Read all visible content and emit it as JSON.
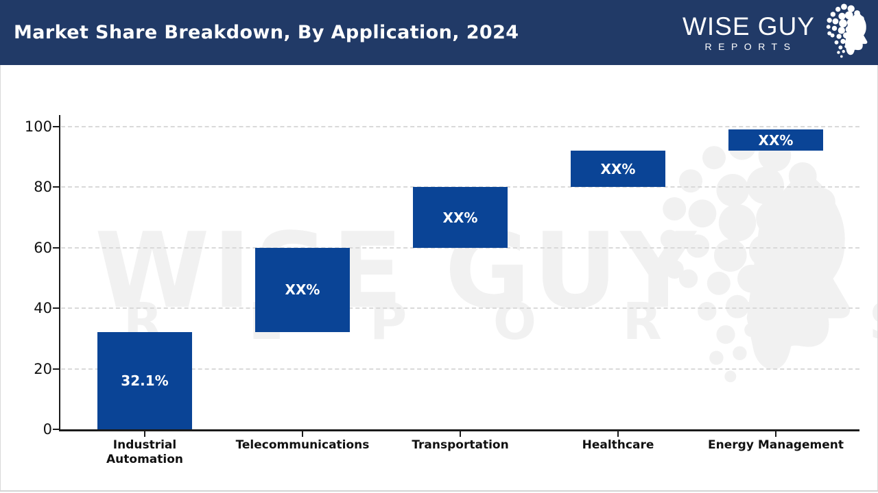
{
  "header": {
    "title": "Market Share Breakdown, By Application, 2024",
    "logo": {
      "line1": "WISE GUY",
      "line2": "REPORTS"
    }
  },
  "watermark": {
    "line1": "WISE GUY",
    "line2": "R E P O R T S"
  },
  "chart_data": {
    "type": "bar",
    "subtype": "waterfall",
    "title": "Market Share Breakdown, By Application, 2024",
    "categories": [
      "Industrial\nAutomation",
      "Telecommunications",
      "Transportation",
      "Healthcare",
      "Energy Management"
    ],
    "segments": [
      {
        "category": "Industrial Automation",
        "start": 0,
        "end": 32.1,
        "label": "32.1%"
      },
      {
        "category": "Telecommunications",
        "start": 32.1,
        "end": 60,
        "label": "XX%"
      },
      {
        "category": "Transportation",
        "start": 60,
        "end": 80,
        "label": "XX%"
      },
      {
        "category": "Healthcare",
        "start": 80,
        "end": 92,
        "label": "XX%"
      },
      {
        "category": "Energy Management",
        "start": 92,
        "end": 99,
        "label": "XX%"
      }
    ],
    "y_ticks": [
      0,
      20,
      40,
      60,
      80,
      100
    ],
    "ylim": [
      0,
      103.5
    ],
    "xlabel": "",
    "ylabel": "",
    "grid": "horizontal-dashed",
    "legend": "none",
    "bar_color": "#0a4496",
    "bar_label_color": "#ffffff"
  },
  "colors": {
    "header_bg": "#213a67",
    "bar": "#0a4496",
    "grid": "#d9d9d9",
    "axis": "#1a1a1a",
    "watermark": "#f1f1f1"
  }
}
